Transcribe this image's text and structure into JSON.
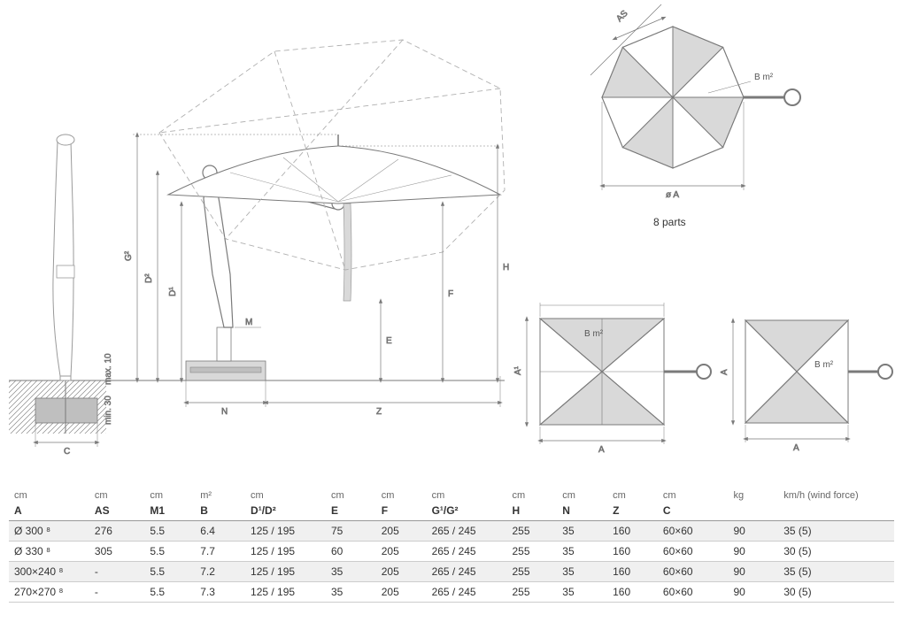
{
  "colors": {
    "line": "#7a7a7a",
    "thinLine": "#9a9a9a",
    "dashLine": "#b0b0b0",
    "fillLight": "#ffffff",
    "fillGray": "#d9d9d9",
    "fillDarkGray": "#bfbfbf",
    "text": "#555555",
    "hatch": "#888888"
  },
  "labels": {
    "G2": "G²",
    "D2": "D²",
    "D1": "D¹",
    "M": "M",
    "N": "N",
    "Z": "Z",
    "E": "E",
    "F": "F",
    "H": "H",
    "C": "C",
    "max10": "max. 10",
    "min30": "min. 30",
    "AS": "AS",
    "Bm2": "B m²",
    "diamA": "ø A",
    "eightParts": "8 parts",
    "A": "A",
    "A1": "A¹"
  },
  "table": {
    "unitsRow": [
      "cm",
      "cm",
      "cm",
      "m²",
      "cm",
      "cm",
      "cm",
      "cm",
      "cm",
      "cm",
      "cm",
      "cm",
      "kg",
      "km/h (wind force)"
    ],
    "headerRow": [
      "A",
      "AS",
      "M1",
      "B",
      "D¹/D²",
      "E",
      "F",
      "G¹/G²",
      "H",
      "N",
      "Z",
      "C",
      "",
      ""
    ],
    "rows": [
      {
        "cells": [
          "Ø 300 ⁸",
          "276",
          "5.5",
          "6.4",
          "125 / 195",
          "75",
          "205",
          "265 / 245",
          "255",
          "35",
          "160",
          "60×60",
          "90",
          "35 (5)"
        ],
        "shaded": true
      },
      {
        "cells": [
          "Ø 330 ⁸",
          "305",
          "5.5",
          "7.7",
          "125 / 195",
          "60",
          "205",
          "265 / 245",
          "255",
          "35",
          "160",
          "60×60",
          "90",
          "30 (5)"
        ],
        "shaded": false
      },
      {
        "cells": [
          "300×240 ⁸",
          "-",
          "5.5",
          "7.2",
          "125 / 195",
          "35",
          "205",
          "265 / 245",
          "255",
          "35",
          "160",
          "60×60",
          "90",
          "35 (5)"
        ],
        "shaded": true
      },
      {
        "cells": [
          "270×270 ⁸",
          "-",
          "5.5",
          "7.3",
          "125 / 195",
          "35",
          "205",
          "265 / 245",
          "255",
          "35",
          "160",
          "60×60",
          "90",
          "30 (5)"
        ],
        "shaded": false
      }
    ],
    "colWidths": [
      "80",
      "55",
      "50",
      "50",
      "80",
      "50",
      "50",
      "80",
      "50",
      "50",
      "50",
      "70",
      "50",
      "115"
    ]
  }
}
